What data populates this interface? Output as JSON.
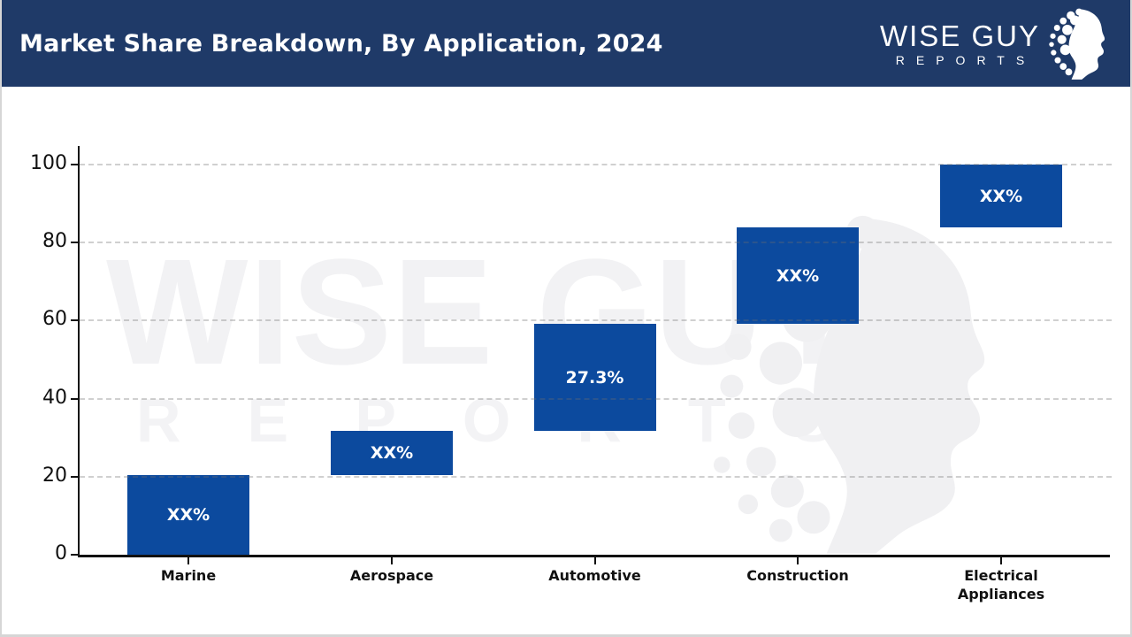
{
  "header": {
    "title": "Market Share Breakdown, By Application, 2024",
    "logo": {
      "line1": "WISE GUY",
      "line2": "REPORTS"
    },
    "bg_color": "#1f3a68"
  },
  "watermark": {
    "line1": "WISE GUY",
    "line2": "REPORTS"
  },
  "chart_data": {
    "type": "bar",
    "variant": "floating-waterfall",
    "title": "Market Share Breakdown, By Application, 2024",
    "categories": [
      "Marine",
      "Aerospace",
      "Automotive",
      "Construction",
      "Electrical\nAppliances"
    ],
    "segments": [
      {
        "category": "Marine",
        "start": 0,
        "end": 20.4,
        "label": "XX%"
      },
      {
        "category": "Aerospace",
        "start": 20.4,
        "end": 31.8,
        "label": "XX%"
      },
      {
        "category": "Automotive",
        "start": 31.8,
        "end": 59.1,
        "label": "27.3%"
      },
      {
        "category": "Construction",
        "start": 59.1,
        "end": 83.8,
        "label": "XX%"
      },
      {
        "category": "Electrical Appliances",
        "start": 83.8,
        "end": 100,
        "label": "XX%"
      }
    ],
    "yticks": [
      0,
      20,
      40,
      60,
      80,
      100
    ],
    "ylim": [
      0,
      105
    ],
    "xlabel": "",
    "ylabel": "",
    "bar_color": "#0c4a9e",
    "grid": "horizontal-dashed",
    "legend": "none"
  }
}
